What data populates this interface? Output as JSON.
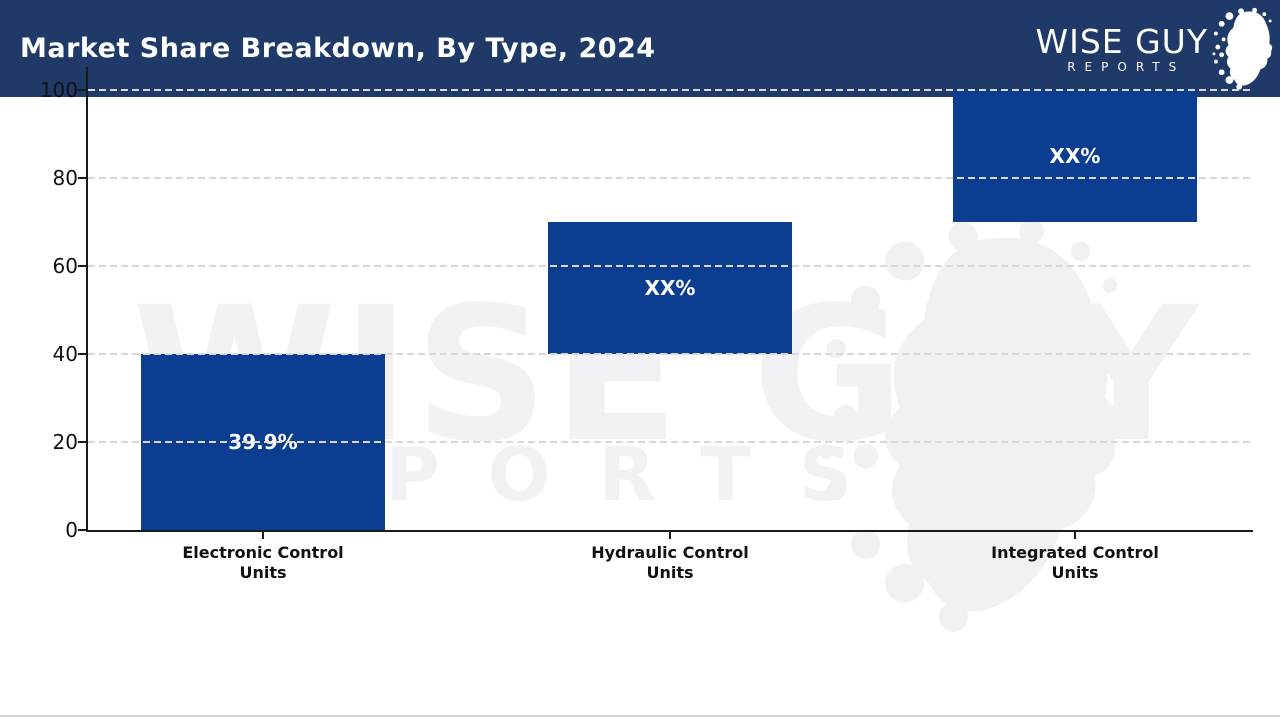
{
  "header": {
    "title": "Market Share Breakdown, By Type, 2024",
    "logo": {
      "line1": "WISE GUY",
      "line2": "REPORTS"
    }
  },
  "watermark": {
    "line1": "WISE GUY",
    "line2": "REPORTS"
  },
  "chart_data": {
    "type": "bar",
    "subtype": "floating-waterfall",
    "title": "Market Share Breakdown, By Type, 2024",
    "categories": [
      "Electronic Control Units",
      "Hydraulic Control Units",
      "Integrated Control Units"
    ],
    "bars": [
      {
        "category_lines": [
          "Electronic Control",
          "Units"
        ],
        "start": 0,
        "end": 40,
        "label": "39.9%"
      },
      {
        "category_lines": [
          "Hydraulic Control",
          "Units"
        ],
        "start": 40,
        "end": 70,
        "label": "XX%"
      },
      {
        "category_lines": [
          "Integrated Control",
          "Units"
        ],
        "start": 70,
        "end": 100,
        "label": "XX%"
      }
    ],
    "ylim": [
      0,
      100
    ],
    "yticks": [
      0,
      20,
      40,
      60,
      80,
      100
    ],
    "grid": "dashed-horizontal",
    "legend": null,
    "xlabel": "",
    "ylabel": ""
  },
  "colors": {
    "header_bg": "#1f3a68",
    "bar": "#0b3d91",
    "grid": "#d9d9d9",
    "axis": "#1a1a1a",
    "watermark": "#f2f2f5"
  }
}
